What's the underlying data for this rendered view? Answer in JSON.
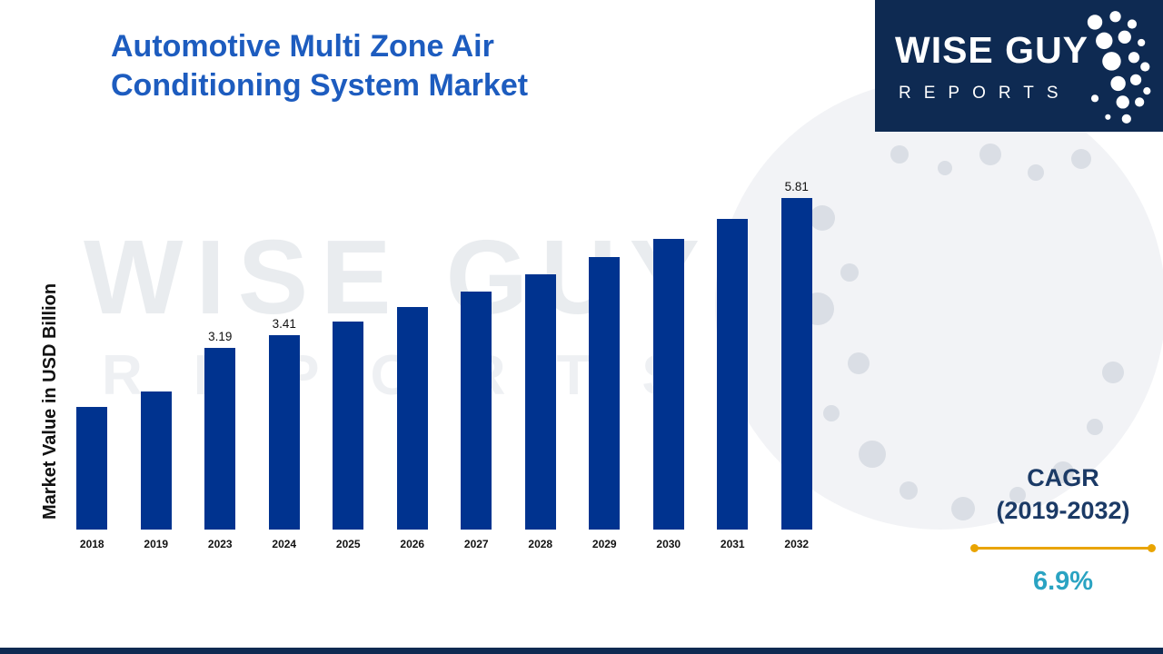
{
  "header": {
    "title_line1": "Automotive Multi Zone Air",
    "title_line2": "Conditioning System Market"
  },
  "logo": {
    "name": "WISE GUY",
    "reports": "REPORTS"
  },
  "watermark": {
    "line1": "WISE GUY",
    "line2": "REPORTS"
  },
  "chart_data": {
    "type": "bar",
    "title": "Automotive Multi Zone Air Conditioning System Market",
    "xlabel": "",
    "ylabel": "Market Value in USD Billion",
    "categories": [
      "2018",
      "2019",
      "2023",
      "2024",
      "2025",
      "2026",
      "2027",
      "2028",
      "2029",
      "2030",
      "2031",
      "2032"
    ],
    "values": [
      2.15,
      2.42,
      3.19,
      3.41,
      3.65,
      3.9,
      4.18,
      4.48,
      4.78,
      5.1,
      5.45,
      5.81
    ],
    "data_labels": {
      "2023": "3.19",
      "2024": "3.41",
      "2032": "5.81"
    },
    "ylim": [
      0,
      6.45
    ],
    "grid": false,
    "legend": false,
    "bar_color": "#00338f"
  },
  "cagr": {
    "line1": "CAGR",
    "line2": "(2019-2032)",
    "value": "6.9%"
  },
  "colors": {
    "title_blue": "#1d5cbf",
    "bar_navy": "#00338f",
    "logo_navy": "#0e2a52",
    "cagr_navy": "#1b3a66",
    "accent_gold": "#e9a400",
    "pct_teal": "#2aa3c2"
  }
}
